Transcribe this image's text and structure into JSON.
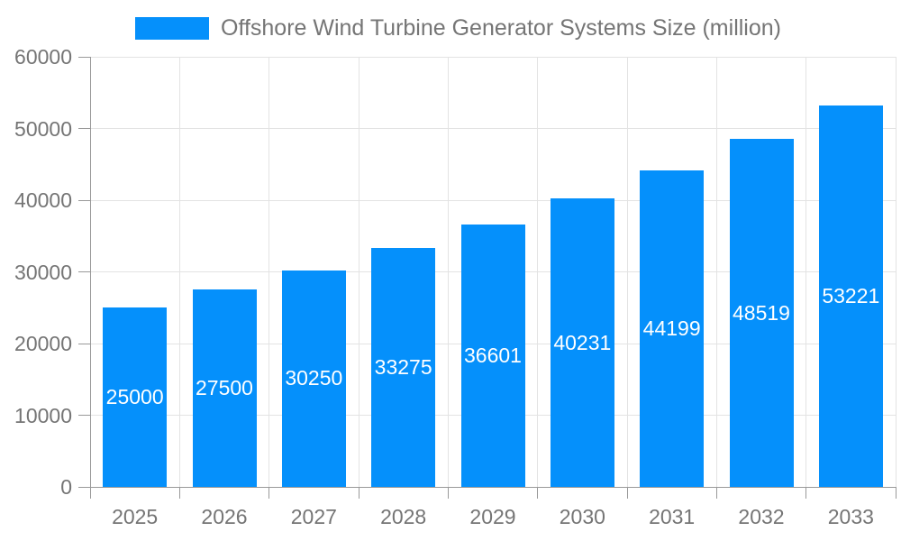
{
  "chart_data": {
    "type": "bar",
    "title": "",
    "series_name": "Offshore Wind Turbine Generator Systems Size (million)",
    "categories": [
      "2025",
      "2026",
      "2027",
      "2028",
      "2029",
      "2030",
      "2031",
      "2032",
      "2033"
    ],
    "values": [
      25000,
      27500,
      30250,
      33275,
      36601,
      40231,
      44199,
      48519,
      53221
    ],
    "xlabel": "",
    "ylabel": "",
    "ylim": [
      0,
      60000
    ],
    "yticks": [
      0,
      10000,
      20000,
      30000,
      40000,
      50000,
      60000
    ],
    "grid": true,
    "legend_position": "top",
    "value_label_position": "inside-center"
  },
  "legend": {
    "label": "Offshore Wind Turbine Generator Systems Size (million)"
  },
  "colors": {
    "bar": "#0590FB",
    "grid": "#e3e3e3",
    "axis": "#999999",
    "text": "#757575",
    "value_label": "#ffffff",
    "background": "#ffffff"
  }
}
